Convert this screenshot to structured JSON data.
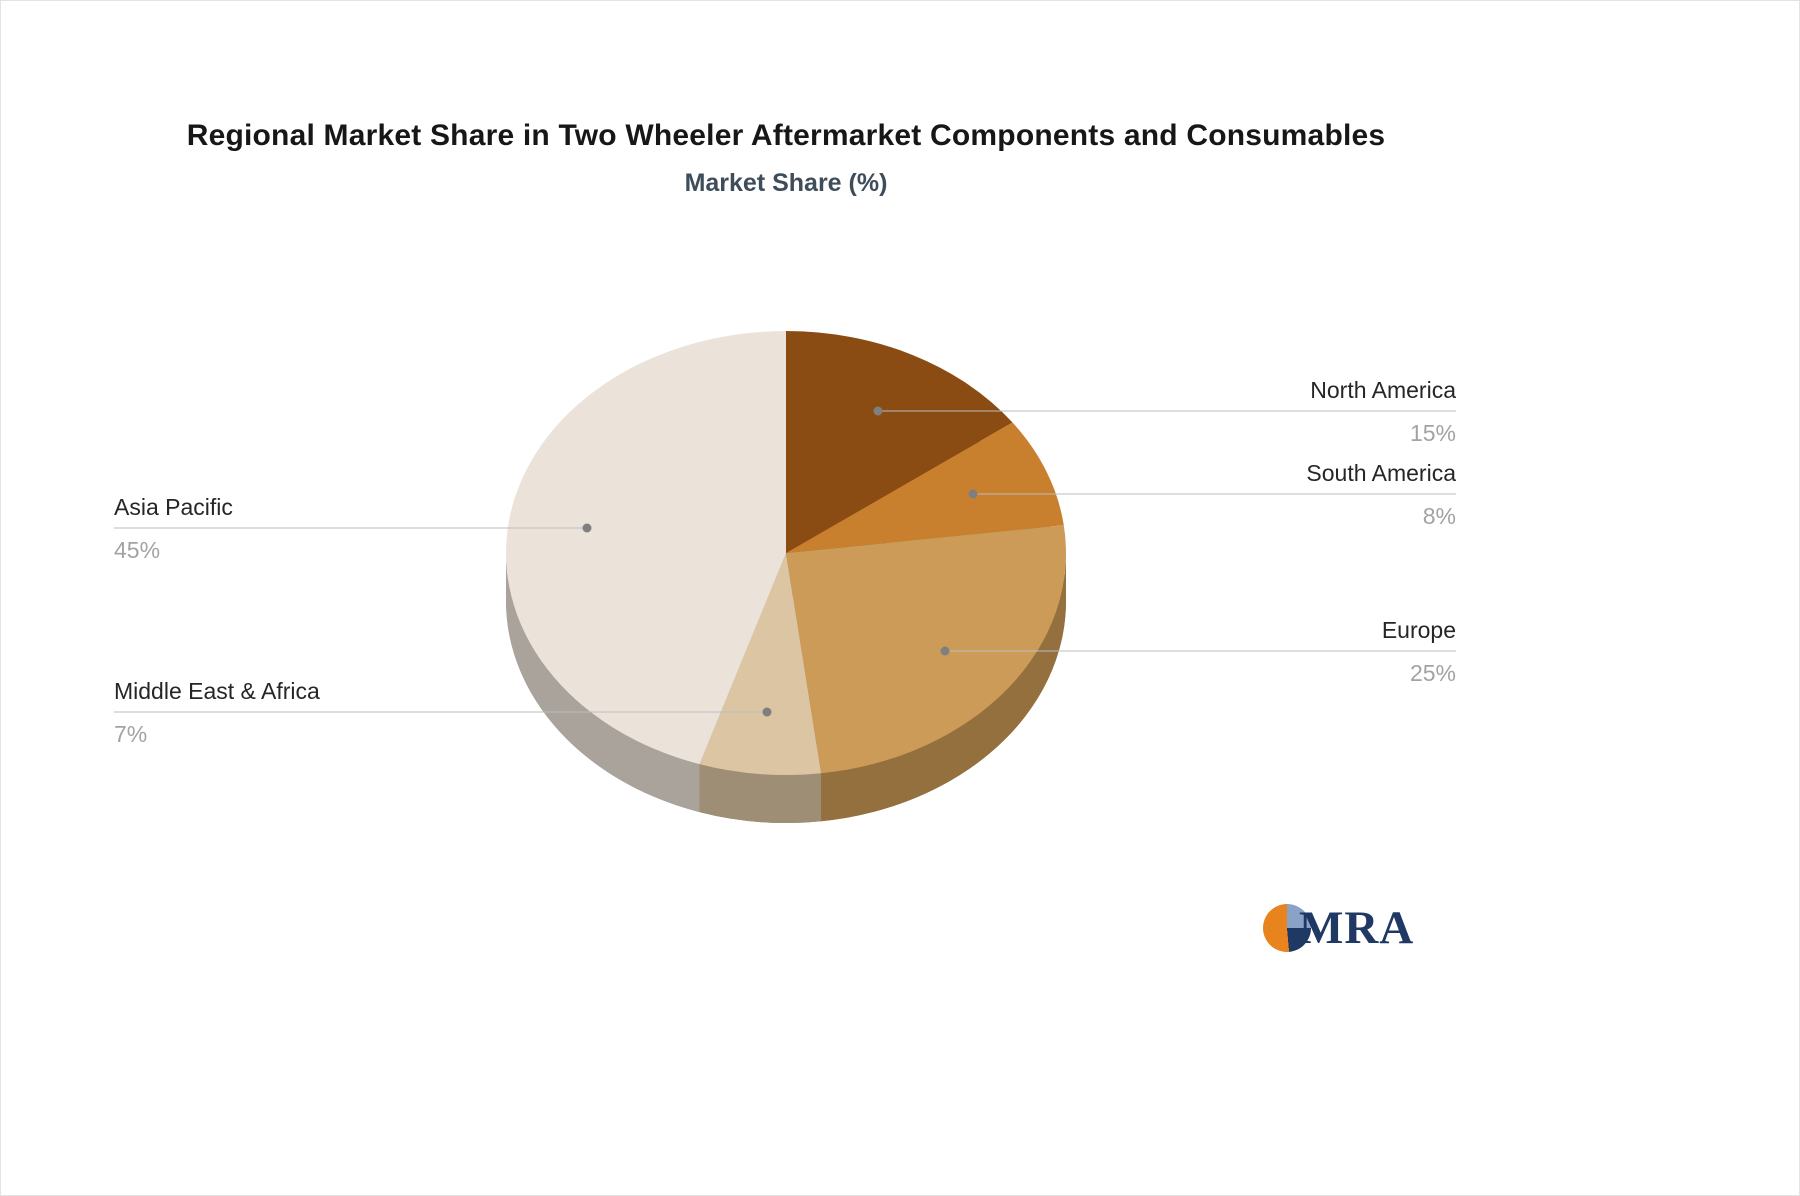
{
  "chart_data": {
    "type": "pie",
    "title": "Regional Market Share in Two Wheeler Aftermarket Components and Consumables",
    "subtitle": "Market Share (%)",
    "unit": "%",
    "style": "3d",
    "direction": "clockwise",
    "start_angle_deg": 0,
    "legend": "none",
    "labels": [
      "North America",
      "South America",
      "Europe",
      "Middle East & Africa",
      "Asia Pacific"
    ],
    "values": [
      15,
      8,
      25,
      7,
      45
    ],
    "value_labels": [
      "15%",
      "8%",
      "25%",
      "7%",
      "45%"
    ],
    "colors": [
      "#8a4c12",
      "#c8802e",
      "#cd9b58",
      "#dcc5a3",
      "#ebe3d9"
    ],
    "label_sides": [
      "right",
      "right",
      "right",
      "left",
      "left"
    ]
  },
  "logo": {
    "text": "MRA",
    "text_color": "#1f3864",
    "icon_colors": [
      "#8aa2c8",
      "#1f3864",
      "#e8831d"
    ]
  }
}
